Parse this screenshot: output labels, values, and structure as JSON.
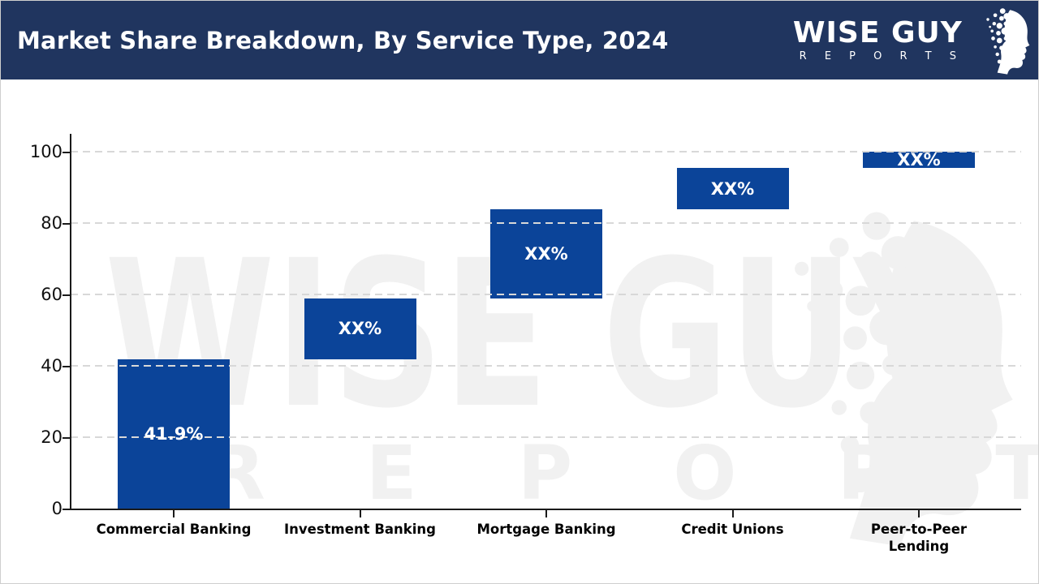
{
  "header": {
    "title": "Market Share Breakdown, By Service Type, 2024",
    "logo": {
      "wordmark": "WISE GUY",
      "subtext": "R E P O R T S",
      "icon": "dotted-head-profile-icon"
    }
  },
  "watermark": {
    "wordmark": "WISE GUY",
    "subtext": "R E P O R T S",
    "icon": "dotted-head-profile-icon"
  },
  "colors": {
    "header_bg": "#20355f",
    "bar_fill": "#0b4499",
    "bar_label": "#ffffff",
    "axis": "#1a1a1a",
    "gridline": "#d8d8d8",
    "watermark": "#f1f1f1"
  },
  "chart_data": {
    "type": "bar",
    "subtype": "waterfall",
    "title": "Market Share Breakdown, By Service Type, 2024",
    "categories": [
      "Commercial Banking",
      "Investment Banking",
      "Mortgage Banking",
      "Credit Unions",
      "Peer-to-Peer Lending"
    ],
    "category_display": [
      "Commercial Banking",
      "Investment Banking",
      "Mortgage Banking",
      "Credit Unions",
      "Peer-to-Peer\nLending"
    ],
    "segments": [
      {
        "category": "Commercial Banking",
        "start": 0,
        "end": 41.9,
        "label": "41.9%"
      },
      {
        "category": "Investment Banking",
        "start": 41.9,
        "end": 58.8,
        "label": "XX%"
      },
      {
        "category": "Mortgage Banking",
        "start": 58.8,
        "end": 83.8,
        "label": "XX%"
      },
      {
        "category": "Credit Unions",
        "start": 83.8,
        "end": 95.5,
        "label": "XX%"
      },
      {
        "category": "Peer-to-Peer Lending",
        "start": 95.5,
        "end": 100,
        "label": "XX%"
      }
    ],
    "yticks": [
      0,
      20,
      40,
      60,
      80,
      100
    ],
    "ylim": [
      0,
      105
    ],
    "xlabel": "",
    "ylabel": "",
    "grid": "horizontal-dashed",
    "legend": "none"
  }
}
